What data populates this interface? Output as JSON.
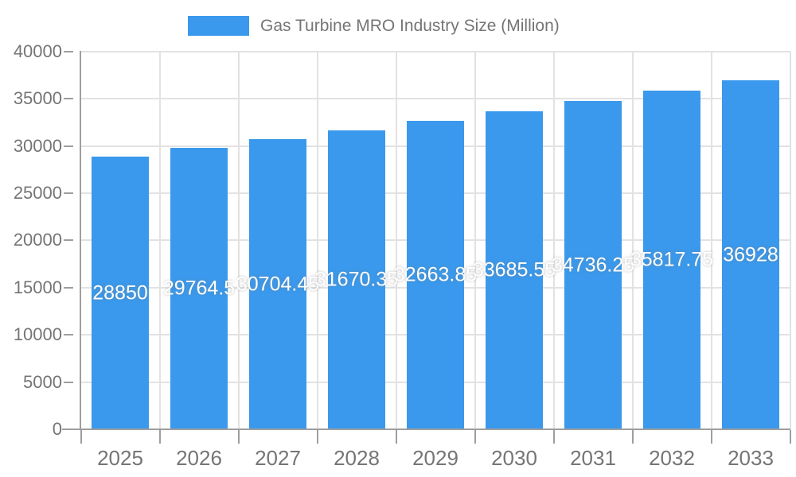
{
  "legend": {
    "label": "Gas Turbine MRO Industry Size (Million)",
    "swatch_color": "#3A99EC"
  },
  "chart_data": {
    "type": "bar",
    "title": "Gas Turbine MRO Industry Size (Million)",
    "categories": [
      "2025",
      "2026",
      "2027",
      "2028",
      "2029",
      "2030",
      "2031",
      "2032",
      "2033"
    ],
    "values": [
      28850,
      29764.5,
      30704.45,
      31670.35,
      32663.85,
      33685.55,
      34736.25,
      35817.75,
      36928
    ],
    "bar_labels": [
      "28850",
      "29764.5",
      "30704.45",
      "31670.35",
      "32663.85",
      "33685.55",
      "34736.25",
      "35817.75",
      "36928"
    ],
    "xlabel": "",
    "ylabel": "",
    "ylim": [
      0,
      40000
    ],
    "yticks": [
      0,
      5000,
      10000,
      15000,
      20000,
      25000,
      30000,
      35000,
      40000
    ],
    "ytick_labels": [
      "0",
      "5000",
      "10000",
      "15000",
      "20000",
      "25000",
      "30000",
      "35000",
      "40000"
    ],
    "grid": true,
    "legend_position": "top",
    "colors": {
      "bar": "#3A99EC",
      "gridline": "#E2E2E2",
      "axis": "#9E9E9E",
      "tick_text": "#757575",
      "bar_label_text": "#FFFFFF",
      "background": "#FFFFFF"
    }
  }
}
